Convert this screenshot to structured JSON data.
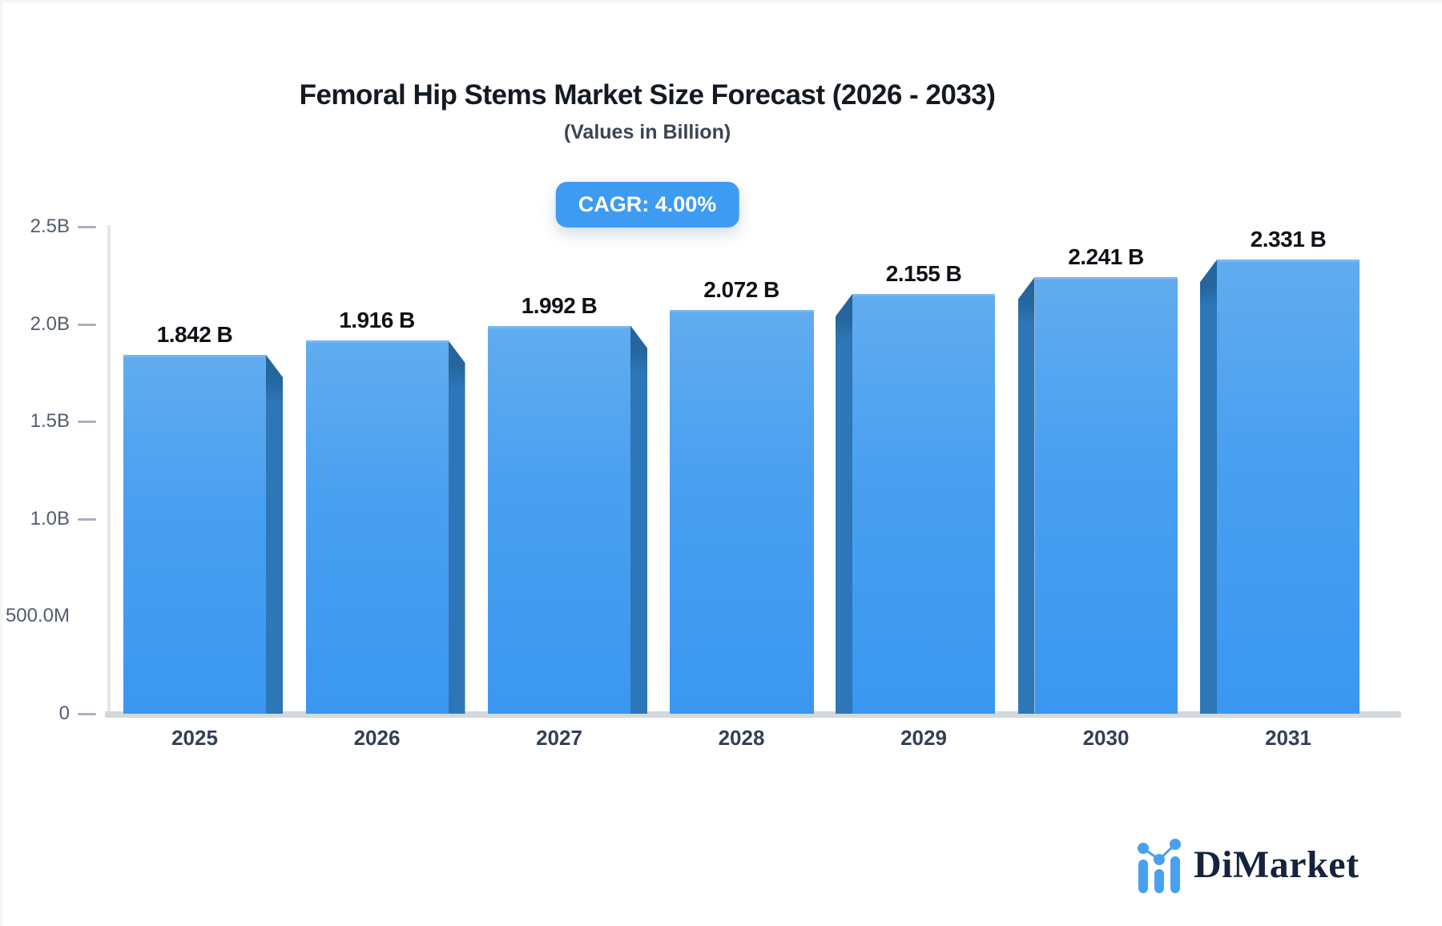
{
  "header": {
    "title": "Femoral Hip Stems Market Size Forecast (2026 - 2033)",
    "subtitle": "(Values in Billion)"
  },
  "badge": {
    "label": "CAGR: 4.00%",
    "background": "#3e9bf2",
    "text_color": "#ffffff"
  },
  "chart_data": {
    "type": "bar",
    "title": "Femoral Hip Stems Market Size Forecast (2026 - 2033)",
    "subtitle": "(Values in Billion)",
    "categories": [
      "2025",
      "2026",
      "2027",
      "2028",
      "2029",
      "2030",
      "2031"
    ],
    "values": [
      1.842,
      1.916,
      1.992,
      2.072,
      2.155,
      2.241,
      2.331
    ],
    "value_labels": [
      "1.842 B",
      "1.916 B",
      "1.992 B",
      "2.072 B",
      "2.155 B",
      "2.241 B",
      "2.331 B"
    ],
    "xlabel": "",
    "ylabel": "",
    "ylim": [
      0,
      2.5
    ],
    "grid": false,
    "legend": false,
    "yticks": [
      {
        "label": "2.5B",
        "value": 2.5,
        "dash": true
      },
      {
        "label": "2.0B",
        "value": 2.0,
        "dash": true
      },
      {
        "label": "1.5B",
        "value": 1.5,
        "dash": true
      },
      {
        "label": "1.0B",
        "value": 1.0,
        "dash": true
      },
      {
        "label": "500.0M",
        "value": 0.5,
        "dash": false
      },
      {
        "label": "0",
        "value": 0.0,
        "dash": true
      }
    ],
    "bevel_direction": [
      "right",
      "right",
      "right",
      "none",
      "left",
      "left",
      "left"
    ],
    "bar_colors": {
      "face_top": "#61acef",
      "face_bottom": "#3a97f1",
      "side": "#2d77b8",
      "bevel": "#26679f",
      "top_highlight": "#74b8f4"
    }
  },
  "footer_logo": {
    "text": "DiMarket",
    "icon": "dimarket-bars-icon",
    "text_color": "#15233c",
    "accent_color": "#4aa0f0"
  }
}
